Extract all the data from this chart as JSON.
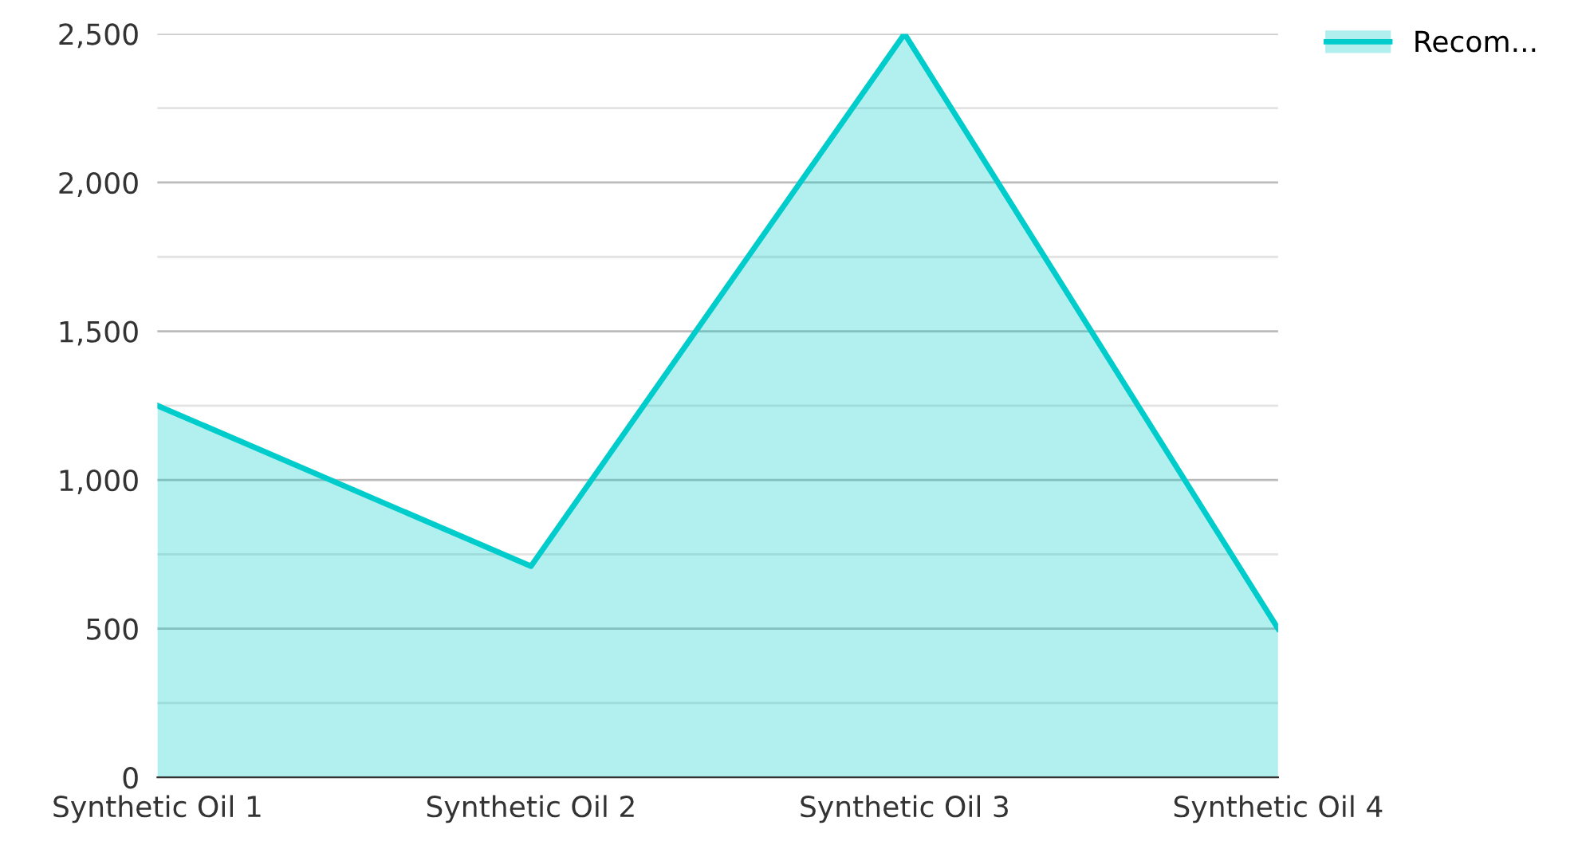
{
  "chart_data": {
    "type": "area",
    "categories": [
      "Synthetic Oil 1",
      "Synthetic Oil 2",
      "Synthetic Oil 3",
      "Synthetic Oil 4"
    ],
    "series": [
      {
        "name": "Recom...",
        "color": "#00cccc",
        "values": [
          1250,
          710,
          2500,
          500
        ]
      }
    ],
    "ylim": [
      0,
      2500
    ],
    "yticks": [
      0,
      {
        "value": 250,
        "label": null
      },
      500,
      {
        "value": 750,
        "label": null
      },
      {
        "value": 1000,
        "label": "1,000"
      },
      {
        "value": 1250,
        "label": null
      },
      {
        "value": 1500,
        "label": "1,500"
      },
      {
        "value": 1750,
        "label": null
      },
      {
        "value": 2000,
        "label": "2,000"
      },
      {
        "value": 2250,
        "label": null
      },
      {
        "value": 2500,
        "label": "2,500"
      }
    ],
    "grid": "y",
    "legend": "top right"
  }
}
